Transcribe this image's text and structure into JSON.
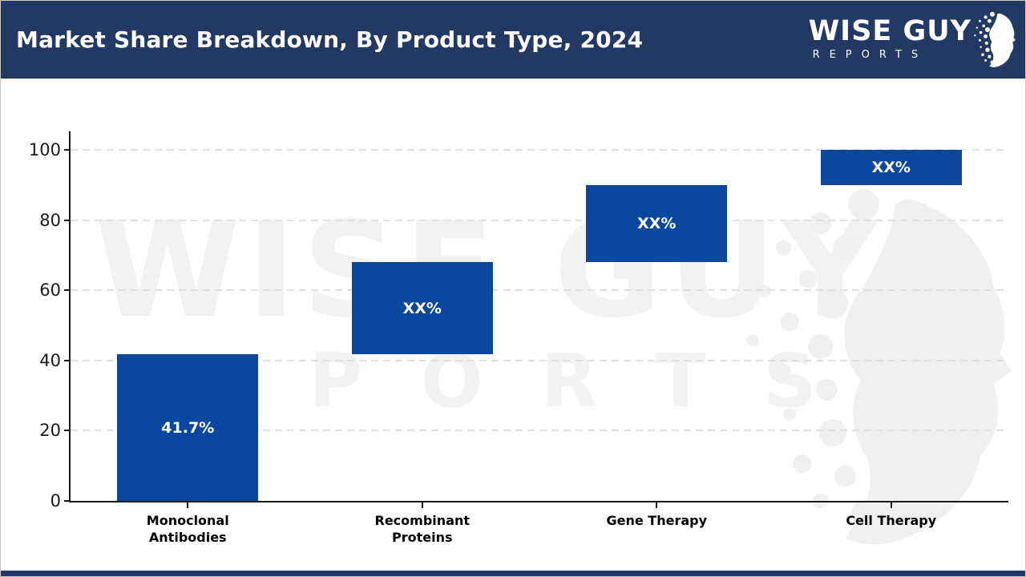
{
  "header": {
    "title": "Market Share Breakdown, By Product Type, 2024",
    "logo": {
      "line1": "WISE GUY",
      "line2": "REPORTS"
    },
    "bg_color": "#223963",
    "text_color": "#ffffff"
  },
  "watermark": {
    "line1": "WISE GUY",
    "line2": "P O R T S",
    "color": "#f2f2f2"
  },
  "chart_data": {
    "type": "bar",
    "variant": "waterfall",
    "title": "Market Share Breakdown, By Product Type, 2024",
    "xlabel": "",
    "ylabel": "",
    "categories": [
      "Monoclonal Antibodies",
      "Recombinant Proteins",
      "Gene Therapy",
      "Cell Therapy"
    ],
    "category_label_lines": [
      [
        "Monoclonal",
        "Antibodies"
      ],
      [
        "Recombinant",
        "Proteins"
      ],
      [
        "Gene Therapy"
      ],
      [
        "Cell Therapy"
      ]
    ],
    "segments": [
      {
        "category": "Monoclonal Antibodies",
        "start": 0,
        "end": 41.7,
        "label": "41.7%"
      },
      {
        "category": "Recombinant Proteins",
        "start": 41.7,
        "end": 68,
        "label": "XX%"
      },
      {
        "category": "Gene Therapy",
        "start": 68,
        "end": 90,
        "label": "XX%"
      },
      {
        "category": "Cell Therapy",
        "start": 90,
        "end": 100,
        "label": "XX%"
      }
    ],
    "yticks": [
      0,
      20,
      40,
      60,
      80,
      100
    ],
    "ylim": [
      0,
      105
    ],
    "grid": "horizontal-dashed",
    "legend": "none",
    "bar_color": "#0c479e",
    "bar_label_color": "#ffffff",
    "axis_color": "#1a1a1a",
    "gridline_color": "#e0e0e0"
  },
  "footer": {
    "bar_color": "#223963"
  }
}
